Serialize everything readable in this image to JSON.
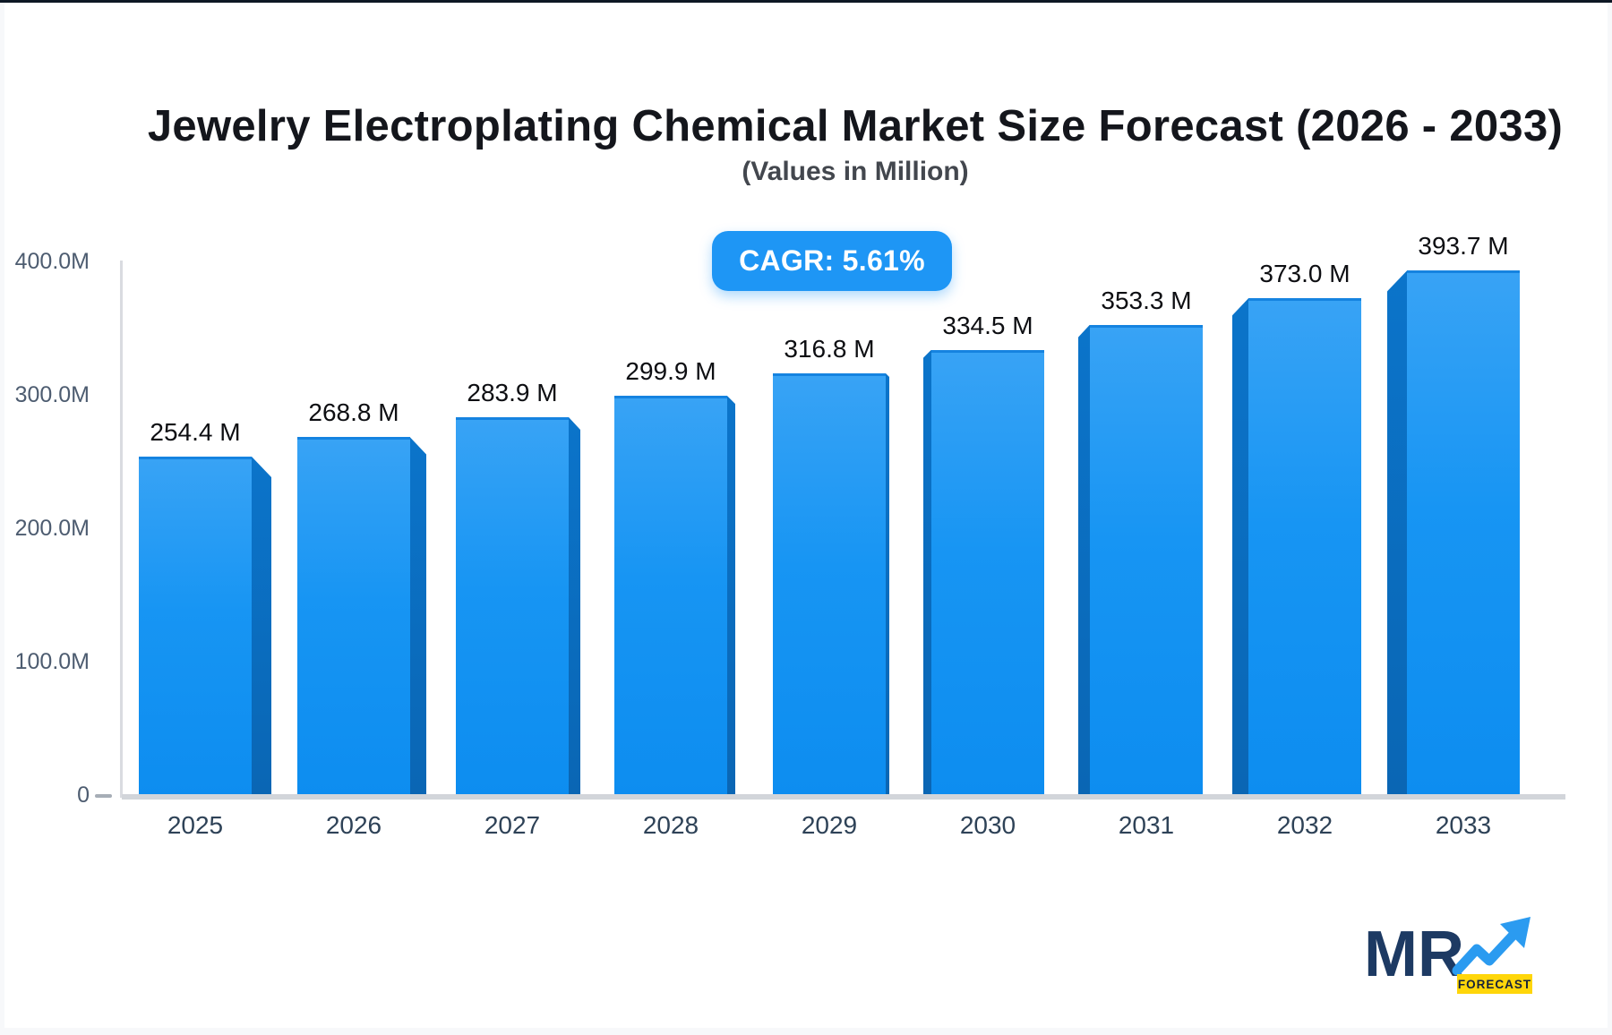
{
  "header": {
    "title": "Jewelry Electroplating Chemical Market Size Forecast (2026 - 2033)",
    "subtitle": "(Values in Million)"
  },
  "badge": {
    "label": "CAGR: 5.61%",
    "bg_color": "#1e96f5"
  },
  "chart_data": {
    "type": "bar",
    "title": "Jewelry Electroplating Chemical Market Size Forecast (2026 - 2033)",
    "subtitle": "(Values in Million)",
    "categories": [
      "2025",
      "2026",
      "2027",
      "2028",
      "2029",
      "2030",
      "2031",
      "2032",
      "2033"
    ],
    "values": [
      254.4,
      268.8,
      283.9,
      299.9,
      316.8,
      334.5,
      353.3,
      373.0,
      393.7
    ],
    "value_labels": [
      "254.4 M",
      "268.8 M",
      "283.9 M",
      "299.9 M",
      "316.8 M",
      "334.5 M",
      "353.3 M",
      "373.0 M",
      "393.7 M"
    ],
    "unit": "M",
    "xlabel": "",
    "ylabel": "",
    "ylim": [
      0,
      400
    ],
    "y_tick_values": [
      400,
      300,
      200,
      100,
      0
    ],
    "y_tick_labels": [
      "400.0M",
      "300.0M",
      "200.0M",
      "100.0M",
      "0"
    ],
    "grid": false,
    "legend_position": "none",
    "bar_color_main": "#1e96f5",
    "bar_color_side": "#0a6bbe",
    "style_3d": true
  },
  "logo": {
    "brand": "MR",
    "tagline": "FORECAST",
    "brand_color": "#1d3a63",
    "tagline_bg": "#ffd60a",
    "arrow_color": "#2b9bf0"
  }
}
